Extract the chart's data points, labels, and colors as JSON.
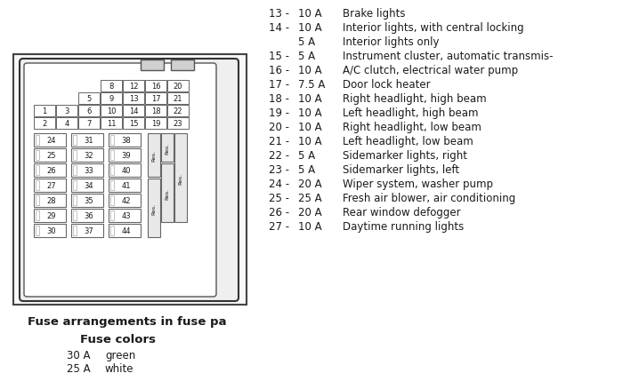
{
  "bg_color": "#ffffff",
  "fuse_box_title": "Fuse arrangements in fuse pa",
  "fuse_colors_title": "Fuse colors",
  "fuse_colors": [
    {
      "amps": "30 A",
      "color": "green"
    },
    {
      "amps": "25 A",
      "color": "white"
    }
  ],
  "right_lines": [
    {
      "num": "13",
      "amp": "10 A",
      "desc": "Brake lights"
    },
    {
      "num": "14",
      "amp": "10 A",
      "desc": "Interior lights, with central locking"
    },
    {
      "num": "",
      "amp": "5 A",
      "desc": "Interior lights only"
    },
    {
      "num": "15",
      "amp": "5 A",
      "desc": "Instrument cluster, automatic transmis-"
    },
    {
      "num": "16",
      "amp": "10 A",
      "desc": "A/C clutch, electrical water pump"
    },
    {
      "num": "17",
      "amp": "7.5 A",
      "desc": "Door lock heater"
    },
    {
      "num": "18",
      "amp": "10 A",
      "desc": "Right headlight, high beam"
    },
    {
      "num": "19",
      "amp": "10 A",
      "desc": "Left headlight, high beam"
    },
    {
      "num": "20",
      "amp": "10 A",
      "desc": "Right headlight, low beam"
    },
    {
      "num": "21",
      "amp": "10 A",
      "desc": "Left headlight, low beam"
    },
    {
      "num": "22",
      "amp": "5 A",
      "desc": "Sidemarker lights, right"
    },
    {
      "num": "23",
      "amp": "5 A",
      "desc": "Sidemarker lights, left"
    },
    {
      "num": "24",
      "amp": "20 A",
      "desc": "Wiper system, washer pump"
    },
    {
      "num": "25",
      "amp": "25 A",
      "desc": "Fresh air blower, air conditioning"
    },
    {
      "num": "26",
      "amp": "20 A",
      "desc": "Rear window defogger"
    },
    {
      "num": "27",
      "amp": "10 A",
      "desc": "Daytime running lights"
    }
  ],
  "text_color": "#1a1a1a",
  "font_size_line": 8.5,
  "font_size_title": 9.5,
  "font_size_diagram": 6.0
}
